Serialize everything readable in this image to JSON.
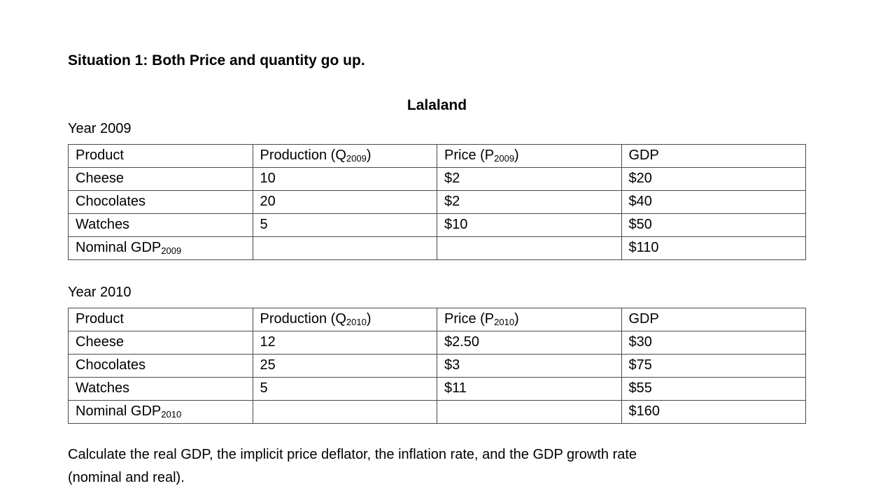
{
  "colors": {
    "background": "#ffffff",
    "text": "#000000",
    "table_border": "#4a4a4a"
  },
  "document": {
    "title": "Situation 1: Both Price and quantity go up.",
    "country_heading": "Lalaland",
    "instructions": {
      "line1": "Calculate the real GDP, the implicit price deflator, the inflation rate, and the GDP growth rate",
      "line2": "(nominal and real)."
    }
  },
  "table_2009": {
    "year_label": "Year 2009",
    "header": {
      "product": "Product",
      "production_pre": "Production (Q",
      "production_sub": "2009",
      "production_post": ")",
      "price_pre": "Price (P",
      "price_sub": "2009",
      "price_post": ")",
      "gdp": "GDP"
    },
    "rows": [
      {
        "product": "Cheese",
        "production": "10",
        "price": "$2",
        "gdp": "$20"
      },
      {
        "product": "Chocolates",
        "production": "20",
        "price": "$2",
        "gdp": "$40"
      },
      {
        "product": "Watches",
        "production": "5",
        "price": "$10",
        "gdp": "$50"
      }
    ],
    "total_row": {
      "label_pre": "Nominal GDP",
      "label_sub": "2009",
      "production": "",
      "price": "",
      "gdp": "$110"
    }
  },
  "table_2010": {
    "year_label": "Year 2010",
    "header": {
      "product": "Product",
      "production_pre": "Production (Q",
      "production_sub": "2010",
      "production_post": ")",
      "price_pre": "Price (P",
      "price_sub": "2010",
      "price_post": ")",
      "gdp": "GDP"
    },
    "rows": [
      {
        "product": "Cheese",
        "production": "12",
        "price": "$2.50",
        "gdp": "$30"
      },
      {
        "product": "Chocolates",
        "production": "25",
        "price": "$3",
        "gdp": "$75"
      },
      {
        "product": "Watches",
        "production": "5",
        "price": "$11",
        "gdp": "$55"
      }
    ],
    "total_row": {
      "label_pre": "Nominal GDP",
      "label_sub": "2010",
      "production": "",
      "price": "",
      "gdp": "$160"
    }
  }
}
